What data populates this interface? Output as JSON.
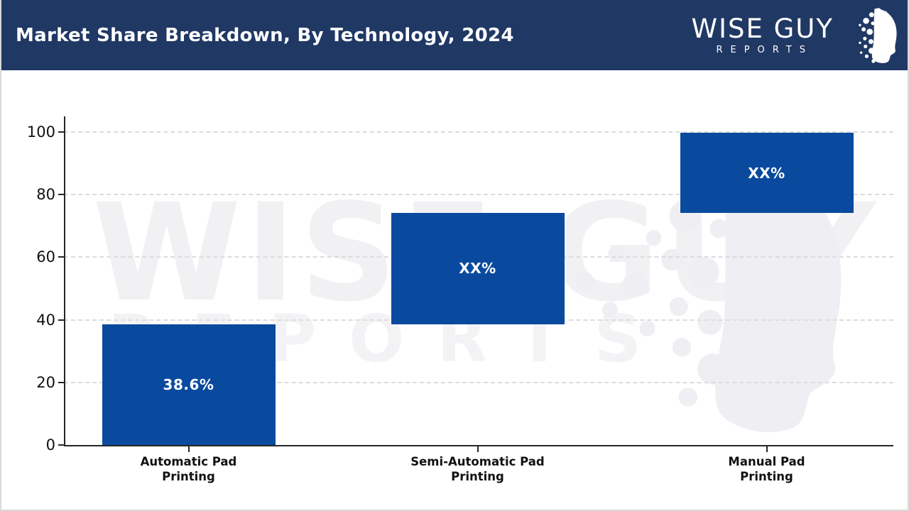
{
  "header": {
    "title": "Market Share Breakdown, By Technology, 2024",
    "logo": {
      "line1": "WISE GUY",
      "line2": "REPORTS"
    }
  },
  "watermark": {
    "line1": "WISE GUY",
    "line2": "REPORTS"
  },
  "chart_data": {
    "type": "bar",
    "subtype": "floating-segment-breakdown",
    "title": "Market Share Breakdown, By Technology, 2024",
    "categories": [
      [
        "Automatic Pad",
        "Printing"
      ],
      [
        "Semi-Automatic Pad",
        "Printing"
      ],
      [
        "Manual Pad",
        "Printing"
      ]
    ],
    "segments": [
      {
        "category": "Automatic Pad Printing",
        "start": 0,
        "end": 38.6,
        "label": "38.6%"
      },
      {
        "category": "Semi-Automatic Pad Printing",
        "start": 38.6,
        "end": 74.2,
        "label": "XX%"
      },
      {
        "category": "Manual Pad Printing",
        "start": 74.2,
        "end": 99.7,
        "label": "XX%"
      }
    ],
    "yticks": [
      0,
      20,
      40,
      60,
      80,
      100
    ],
    "ylim": [
      0,
      104
    ],
    "grid": "horizontal-dashed",
    "legend": "none",
    "bar_color": "#0a4a9e",
    "bar_label_color": "#ffffff",
    "header_color": "#203864",
    "gridline_color": "#dcdcde",
    "axis_color": "#262626"
  }
}
